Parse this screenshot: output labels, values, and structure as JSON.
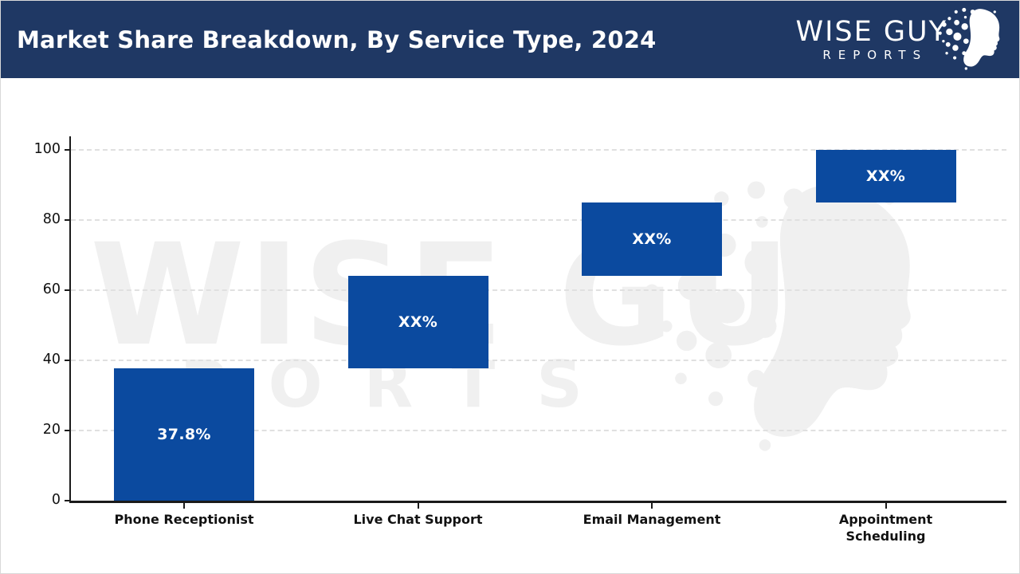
{
  "header": {
    "title": "Market Share Breakdown, By Service Type, 2024",
    "bg_color": "#1f3864",
    "logo": {
      "line1": "WISE GUY",
      "line2": "REPORTS"
    }
  },
  "watermark": {
    "line1": "WISE GUY",
    "line2": "PORTS"
  },
  "chart_data": {
    "type": "bar",
    "subtype": "waterfall",
    "title": "Market Share Breakdown, By Service Type, 2024",
    "categories": [
      "Phone Receptionist",
      "Live Chat Support",
      "Email Management",
      "Appointment Scheduling"
    ],
    "segments": [
      {
        "category": "Phone Receptionist",
        "start": 0,
        "end": 37.8,
        "label": "37.8%"
      },
      {
        "category": "Live Chat Support",
        "start": 37.8,
        "end": 64,
        "label": "XX%"
      },
      {
        "category": "Email Management",
        "start": 64,
        "end": 85,
        "label": "XX%"
      },
      {
        "category": "Appointment Scheduling",
        "start": 85,
        "end": 100,
        "label": "XX%"
      }
    ],
    "yticks": [
      0,
      20,
      40,
      60,
      80,
      100
    ],
    "ylim": [
      0,
      104
    ],
    "xlabel": "",
    "ylabel": "",
    "grid": "horizontal-dashed",
    "legend": "none",
    "bar_color": "#0b4a9f",
    "bar_label_color": "#ffffff",
    "axis_color": "#1a1a1a",
    "gridline_color": "#e0e0e0"
  }
}
